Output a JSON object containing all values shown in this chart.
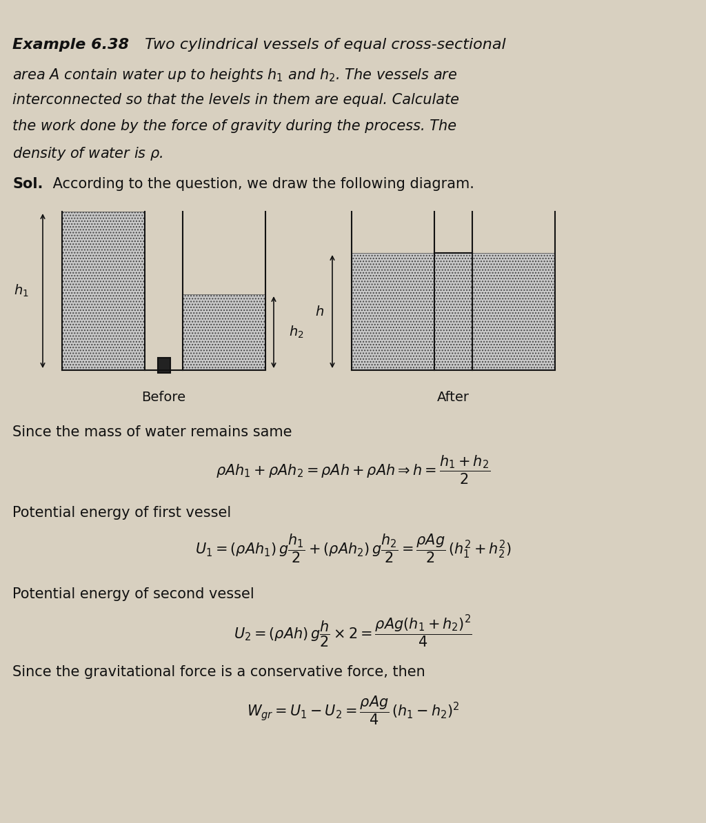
{
  "bg_color": "#b8b0a0",
  "page_color": "#d8d0c0",
  "text_color": "#111111",
  "title_bold": "Example 6.38",
  "title_italic": " Two cylindrical vessels of equal cross-sectional",
  "body_lines": [
    "area A contain water up to heights $h_1$ and $h_2$. The vessels are",
    "interconnected so that the levels in them are equal. Calculate",
    "the work done by the force of gravity during the process. The",
    "density of water is $\\rho$."
  ],
  "sol_bold": "Sol.",
  "sol_rest": " According to the question, we draw the following diagram.",
  "since_mass": "Since the mass of water remains same",
  "pe_first": "Potential energy of first vessel",
  "pe_second": "Potential energy of second vessel",
  "since_grav": "Since the gravitational force is a conservative force, then",
  "before_label": "Before",
  "after_label": "After",
  "hatch_pattern": "....",
  "vessel_facecolor": "#c8c8c8",
  "vessel_edgecolor": "#444444",
  "lw": 1.5
}
